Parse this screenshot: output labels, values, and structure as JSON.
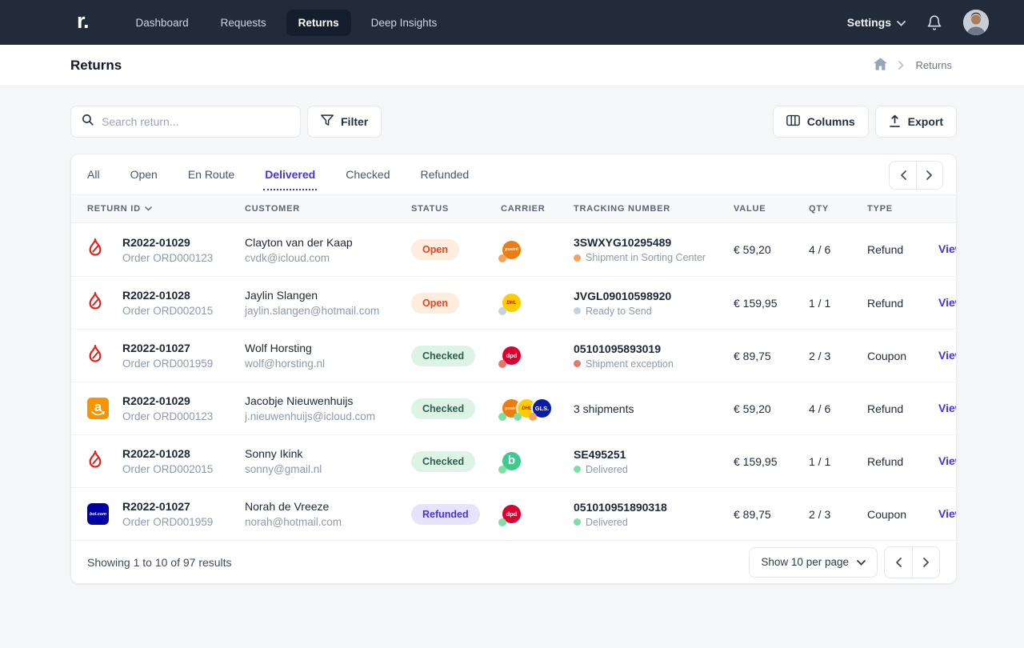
{
  "nav": {
    "logo": "r.",
    "items": [
      {
        "label": "Dashboard",
        "active": false
      },
      {
        "label": "Requests",
        "active": false
      },
      {
        "label": "Returns",
        "active": true
      },
      {
        "label": "Deep Insights",
        "active": false
      }
    ],
    "settings_label": "Settings"
  },
  "page": {
    "title": "Returns"
  },
  "breadcrumb": {
    "current": "Returns"
  },
  "toolbar": {
    "search_placeholder": "Search return...",
    "filter_label": "Filter",
    "columns_label": "Columns",
    "export_label": "Export"
  },
  "tabs": [
    {
      "label": "All",
      "active": false
    },
    {
      "label": "Open",
      "active": false
    },
    {
      "label": "En Route",
      "active": false
    },
    {
      "label": "Delivered",
      "active": true
    },
    {
      "label": "Checked",
      "active": false
    },
    {
      "label": "Refunded",
      "active": false
    }
  ],
  "table": {
    "headers": {
      "return_id": "RETURN ID",
      "customer": "CUSTOMER",
      "status": "STATUS",
      "carrier": "CARRIER",
      "tracking": "TRACKING NUMBER",
      "value": "VALUE",
      "qty": "QTY",
      "type": "TYPE"
    },
    "view_label": "View",
    "rows": [
      {
        "source": "lightspeed",
        "return_id": "R2022-01029",
        "order": "Order ORD000123",
        "customer_name": "Clayton van der Kaap",
        "customer_email": "cvdk@icloud.com",
        "status": "Open",
        "carriers": [
          {
            "name": "postnl",
            "dot": "orange"
          }
        ],
        "tracking_number": "3SWXYG10295489",
        "tracking_dot": "orange",
        "tracking_status": "Shipment in Sorting Center",
        "value": "€ 59,20",
        "qty": "4 / 6",
        "type": "Refund"
      },
      {
        "source": "lightspeed",
        "return_id": "R2022-01028",
        "order": "Order ORD002015",
        "customer_name": "Jaylin Slangen",
        "customer_email": "jaylin.slangen@hotmail.com",
        "status": "Open",
        "carriers": [
          {
            "name": "dhl",
            "dot": "gray"
          }
        ],
        "tracking_number": "JVGL09010598920",
        "tracking_dot": "gray",
        "tracking_status": "Ready to Send",
        "value": "€ 159,95",
        "qty": "1 / 1",
        "type": "Refund"
      },
      {
        "source": "lightspeed",
        "return_id": "R2022-01027",
        "order": "Order ORD001959",
        "customer_name": "Wolf Horsting",
        "customer_email": "wolf@horsting.nl",
        "status": "Checked",
        "carriers": [
          {
            "name": "dpd",
            "dot": "red"
          }
        ],
        "tracking_number": "05101095893019",
        "tracking_dot": "red",
        "tracking_status": "Shipment exception",
        "value": "€ 89,75",
        "qty": "2 / 3",
        "type": "Coupon"
      },
      {
        "source": "amazon",
        "return_id": "R2022-01029",
        "order": "Order ORD000123",
        "customer_name": "Jacobje Nieuwenhuijs",
        "customer_email": "j.nieuwenhuijs@icloud.com",
        "status": "Checked",
        "carriers": [
          {
            "name": "postnl",
            "dot": "green"
          },
          {
            "name": "dhl",
            "dot": "green"
          },
          {
            "name": "gls",
            "dot": "orange"
          }
        ],
        "tracking_number": "3 shipments",
        "tracking_dot": null,
        "tracking_status": "",
        "value": "€ 59,20",
        "qty": "4 / 6",
        "type": "Refund"
      },
      {
        "source": "lightspeed",
        "return_id": "R2022-01028",
        "order": "Order ORD002015",
        "customer_name": "Sonny Ikink",
        "customer_email": "sonny@gmail.nl",
        "status": "Checked",
        "carriers": [
          {
            "name": "budbee",
            "dot": "green"
          }
        ],
        "tracking_number": "SE495251",
        "tracking_dot": "green",
        "tracking_status": "Delivered",
        "value": "€ 159,95",
        "qty": "1 / 1",
        "type": "Refund"
      },
      {
        "source": "bolcom",
        "return_id": "R2022-01027",
        "order": "Order ORD001959",
        "customer_name": "Norah de Vreeze",
        "customer_email": "norah@hotmail.com",
        "status": "Refunded",
        "carriers": [
          {
            "name": "dpd",
            "dot": "green"
          }
        ],
        "tracking_number": "051010951890318",
        "tracking_dot": "green",
        "tracking_status": "Delivered",
        "value": "€ 89,75",
        "qty": "2 / 3",
        "type": "Coupon"
      }
    ]
  },
  "footer": {
    "showing": "Showing 1 to 10 of 97 results",
    "per_page": "Show 10 per page"
  },
  "carrier_labels": {
    "postnl": "postnl",
    "dhl": "DHL",
    "dpd": "dpd",
    "gls": "GLS.",
    "budbee": "b",
    "bolcom": "bol.com"
  },
  "colors": {
    "accent": "#4733d8",
    "navbar": "#212b3a",
    "status_open_text": "#e2462a",
    "status_open_bg": "#fceddd",
    "status_checked_text": "#2d5f4c",
    "status_checked_bg": "#dcf3e6",
    "status_refunded_text": "#4733d8",
    "status_refunded_bg": "#e8e3fc",
    "dot_orange": "#f3a35b",
    "dot_gray": "#c9d2dc",
    "dot_red": "#e8776b",
    "dot_green": "#7edfa6",
    "carrier_postnl": "#ee7d11",
    "carrier_dhl": "#ffcc00",
    "carrier_dpd": "#dc0032",
    "carrier_gls": "#0a1ba8",
    "carrier_budbee": "#3fc98e"
  }
}
